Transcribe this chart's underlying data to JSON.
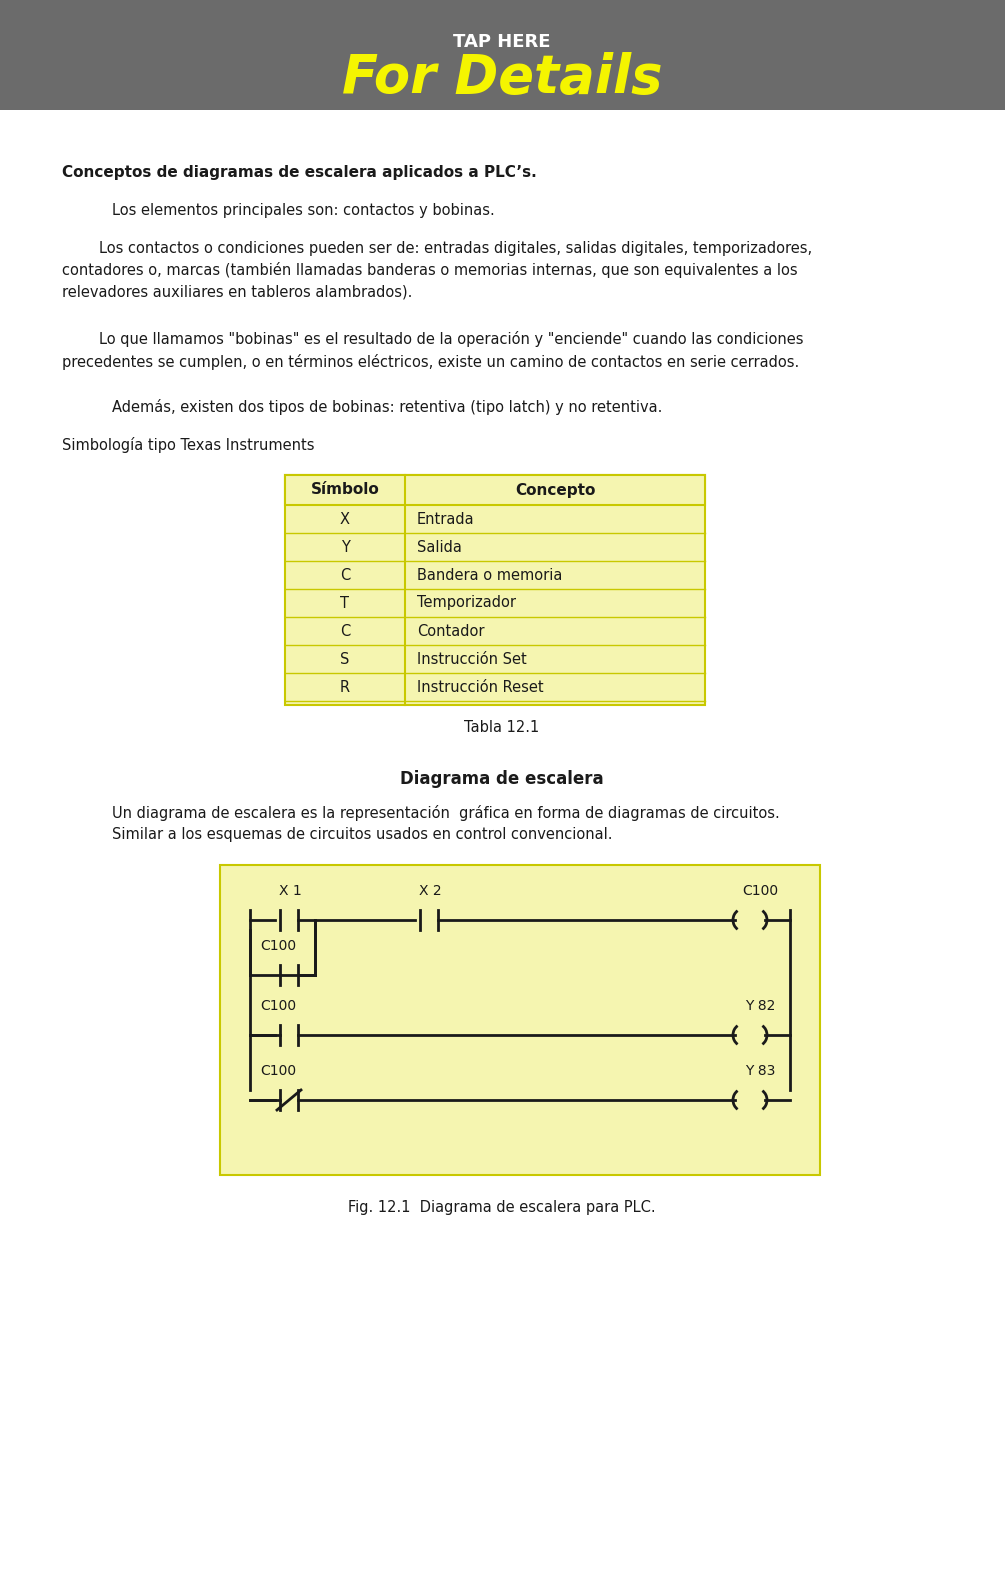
{
  "page_bg": "#ffffff",
  "header_bg": "#6b6b6b",
  "header_tap_here": "TAP HERE",
  "header_for_details": "For Details",
  "header_tap_color": "#ffffff",
  "header_details_color": "#f5f500",
  "title1": "Conceptos de diagramas de escalera aplicados a PLC’s.",
  "para1": "Los elementos principales son: contactos y bobinas.",
  "para2": "Los contactos o condiciones pueden ser de: entradas digitales, salidas digitales, temporizadores,\ncontadores o, marcas (también llamadas banderas o memorias internas, que son equivalentes a los\nrelevadores auxiliares en tableros alambrados).",
  "para3": "Lo que llamamos “bobinas” es el resultado de la operación y “enciende” cuando las condiciones\nprecedentes se cumplen, o en términos eléctricos, existe un camino de contactos en serie cerrados.",
  "para4": "Además, existen dos tipos de bobinas: retentiva (tipo latch) y no retentiva.",
  "simbologia": "Simbología tipo Texas Instruments",
  "table_header": [
    "Símbolo",
    "Concepto"
  ],
  "table_rows": [
    [
      "X",
      "Entrada"
    ],
    [
      "Y",
      "Salida"
    ],
    [
      "C",
      "Bandera o memoria"
    ],
    [
      "T",
      "Temporizador"
    ],
    [
      "C",
      "Contador"
    ],
    [
      "S",
      "Instrucción Set"
    ],
    [
      "R",
      "Instrucción Reset"
    ]
  ],
  "table_caption": "Tabla 12.1",
  "diagram_title": "Diagrama de escalera",
  "diagram_para": "Un diagrama de escalera es la representación  gráfica en forma de diagramas de circuitos.\nSimilar a los esquemas de circuitos usados en control convencional.",
  "fig_caption": "Fig. 12.1  Diagrama de escalera para PLC.",
  "table_bg": "#f5f5b0",
  "table_border": "#c8c800",
  "diagram_bg": "#f5f5b0",
  "text_color": "#1a1a1a",
  "ladder_line_color": "#1a1a1a"
}
